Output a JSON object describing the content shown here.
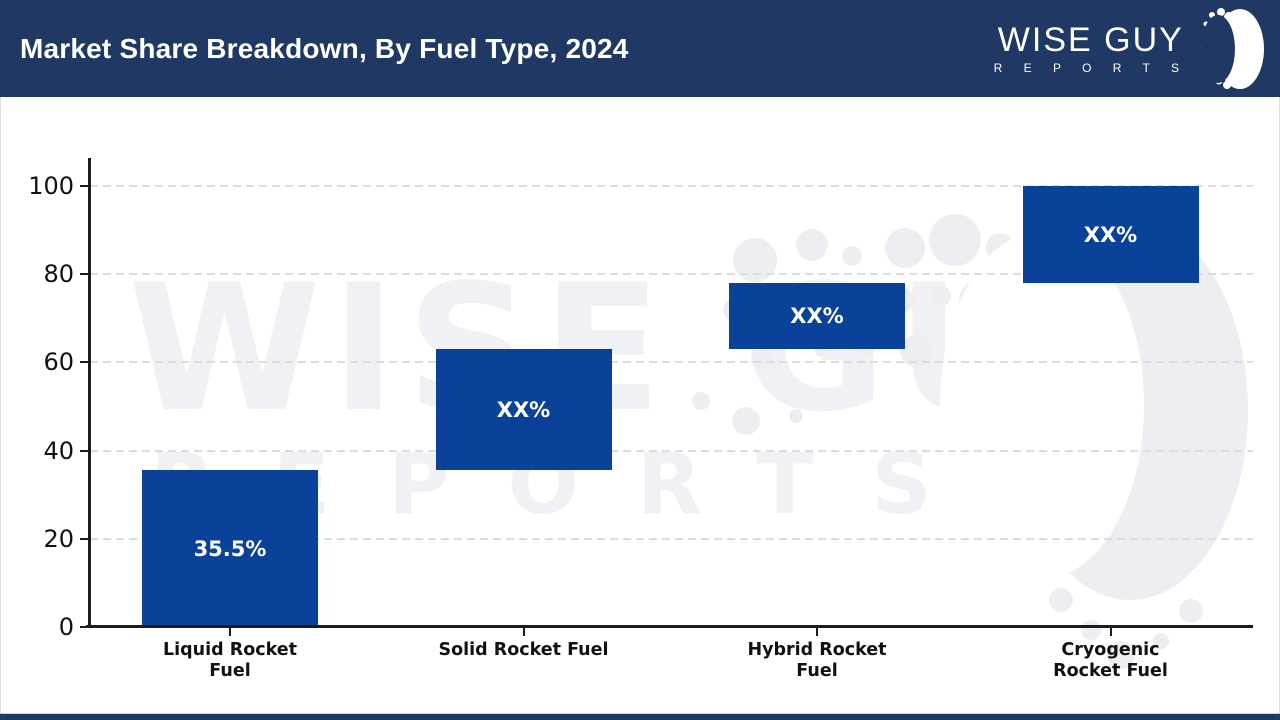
{
  "header": {
    "title": "Market Share Breakdown, By Fuel Type, 2024",
    "logo": {
      "line1": "WISE GUY",
      "line2": "R E P O R T S",
      "head_icon": "dotted-head-profile"
    }
  },
  "watermark": {
    "line1": "WISE GUY",
    "line2": "REPORTS",
    "head_icon": "dotted-head-profile"
  },
  "colors": {
    "header_navy": "#1f3864",
    "bar_blue": "#0a4299",
    "watermark_gray": "#f0f1f4",
    "dot_gray": "#eceef2",
    "axis_black": "#1c1c1c",
    "gridline_gray": "#dcdcdc"
  },
  "chart_data": {
    "type": "bar",
    "subtype": "waterfall",
    "title": "Market Share Breakdown, By Fuel Type, 2024",
    "xlabel": "",
    "ylabel": "",
    "categories": [
      "Liquid Rocket Fuel",
      "Solid Rocket Fuel",
      "Hybrid Rocket Fuel",
      "Cryogenic Rocket Fuel"
    ],
    "segments": [
      {
        "category": "Liquid Rocket Fuel",
        "start": 0,
        "end": 35.5,
        "value": 35.5,
        "label": "35.5%"
      },
      {
        "category": "Solid Rocket Fuel",
        "start": 35.5,
        "end": 63,
        "value": 27.5,
        "label": "XX%"
      },
      {
        "category": "Hybrid Rocket Fuel",
        "start": 63,
        "end": 78,
        "value": 15,
        "label": "XX%"
      },
      {
        "category": "Cryogenic Rocket Fuel",
        "start": 78,
        "end": 100,
        "value": 22,
        "label": "XX%"
      }
    ],
    "yticks": [
      0,
      20,
      40,
      60,
      80,
      100
    ],
    "ylim": [
      0,
      105
    ],
    "grid": "horizontal-dashed",
    "legend": "none",
    "bar_color": "#0a4299",
    "bar_label_color": "#ffffff"
  }
}
